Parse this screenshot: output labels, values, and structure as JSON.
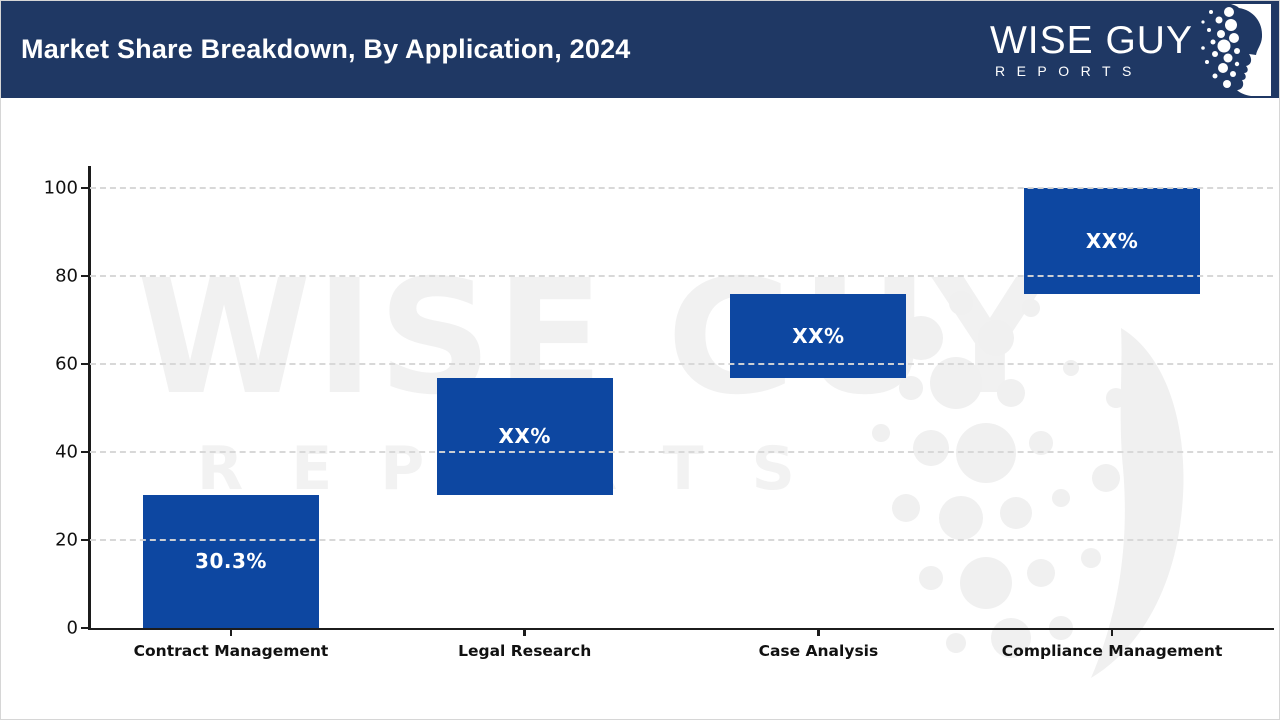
{
  "header": {
    "title": "Market Share Breakdown, By Application, 2024",
    "logo": {
      "line1": "WISE GUY",
      "line2": "REPORTS"
    }
  },
  "watermark": {
    "line1": "WISE GUY",
    "line2": "REPORTS"
  },
  "colors": {
    "header_bg": "#1f3864",
    "bar": "#0d47a1",
    "bar_label": "#ffffff",
    "grid": "#d6d6d6",
    "axis": "#1c1c1c",
    "watermark": "#f1f1f1"
  },
  "chart_data": {
    "type": "bar",
    "subtype": "waterfall",
    "title": "Market Share Breakdown, By Application, 2024",
    "categories": [
      "Contract Management",
      "Legal Research",
      "Case Analysis",
      "Compliance Management"
    ],
    "segments": [
      {
        "category": "Contract Management",
        "start": 0,
        "end": 30.3,
        "label": "30.3%"
      },
      {
        "category": "Legal Research",
        "start": 30.3,
        "end": 56.8,
        "label": "XX%"
      },
      {
        "category": "Case Analysis",
        "start": 56.8,
        "end": 75.8,
        "label": "XX%"
      },
      {
        "category": "Compliance Management",
        "start": 75.8,
        "end": 100,
        "label": "XX%"
      }
    ],
    "ylim": [
      0,
      100
    ],
    "yticks": [
      0,
      20,
      40,
      60,
      80,
      100
    ],
    "xlabel": "",
    "ylabel": "",
    "grid": "horizontal-dashed",
    "legend": "none"
  }
}
